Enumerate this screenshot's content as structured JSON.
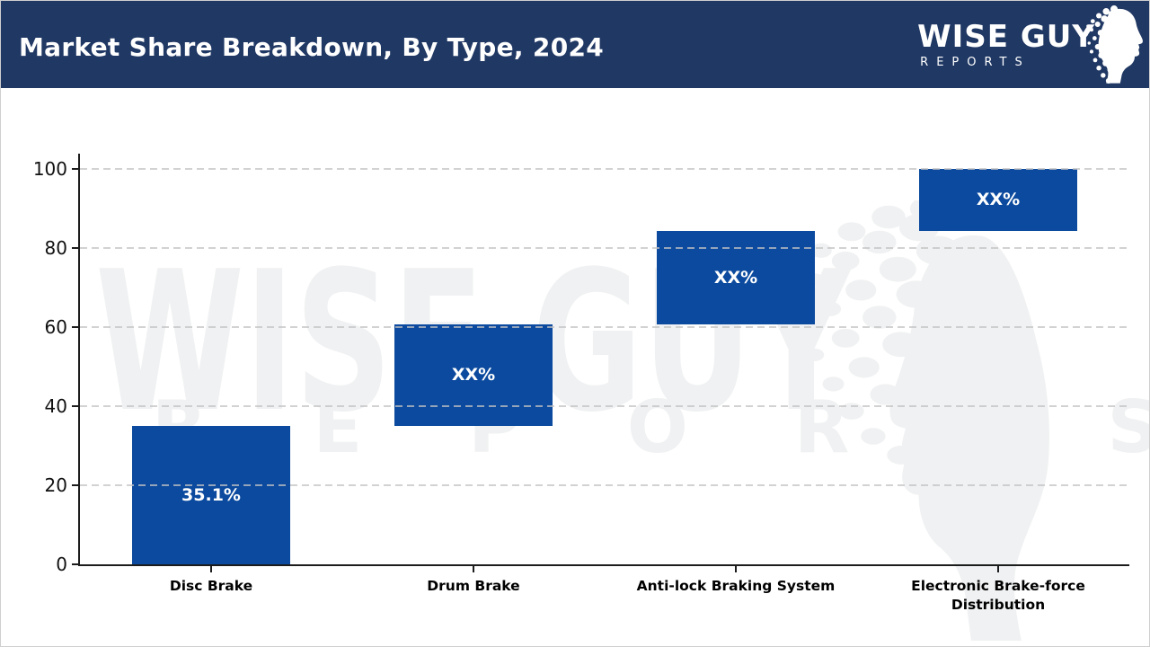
{
  "header": {
    "title": "Market Share Breakdown, By Type, 2024",
    "logo": {
      "line1": "WISE GUY",
      "line2": "REPORTS"
    }
  },
  "watermark": {
    "line1": "WISE GUY",
    "line2": "REPORTS"
  },
  "colors": {
    "header_bg": "#203864",
    "header_text": "#ffffff",
    "bar": "#0b4a9e",
    "bar_label": "#ffffff",
    "grid": "#d9d9d9",
    "axis": "#1c1c1c",
    "watermark": "#f0f1f2",
    "page_border": "#cfcfcf"
  },
  "chart_data": {
    "type": "bar",
    "subtype": "floating-waterfall",
    "title": "Market Share Breakdown, By Type, 2024",
    "categories": [
      "Disc Brake",
      "Drum Brake",
      "Anti-lock Braking System",
      "Electronic Brake-force Distribution"
    ],
    "bars": [
      {
        "category": "Disc Brake",
        "start": 0,
        "end": 35.1,
        "label": "35.1%"
      },
      {
        "category": "Drum Brake",
        "start": 35.1,
        "end": 60.7,
        "label": "XX%"
      },
      {
        "category": "Anti-lock Braking System",
        "start": 60.7,
        "end": 84.4,
        "label": "XX%"
      },
      {
        "category": "Electronic Brake-force Distribution",
        "start": 84.4,
        "end": 100,
        "label": "XX%"
      }
    ],
    "xlabel": "",
    "ylabel": "",
    "ylim": [
      0,
      100
    ],
    "yticks": [
      0,
      20,
      40,
      60,
      80,
      100
    ],
    "grid": "horizontal-dashed",
    "legend_position": "none",
    "bar_color": "#0b4a9e"
  }
}
